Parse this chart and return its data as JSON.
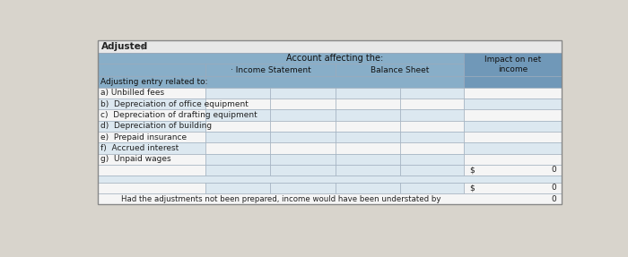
{
  "title_cell": "Adjusted",
  "header1": "Account affecting the:",
  "header2_col1": "· Income Statement",
  "header2_col2": "Balance Sheet",
  "header3": "Impact on net\nincome",
  "row_label_header": "Adjusting entry related to:",
  "rows": [
    "a) Unbilled fees",
    "b)  Depreciation of office equipment",
    "c)  Depreciation of drafting equipment",
    "d)  Depreciation of building",
    "e)  Prepaid insurance",
    "f)  Accrued interest",
    "g)  Unpaid wages"
  ],
  "footer_text": "Had the adjustments not been prepared, income would have been understated by",
  "dollar_val1": "0",
  "dollar_val2": "0",
  "dollar_val3": "0",
  "page_bg": "#d8d4cc",
  "title_bg": "#e8e8e8",
  "header_blue": "#88aec8",
  "header_blue_impact": "#7098b8",
  "cell_bg_white": "#f5f5f5",
  "cell_bg_blue": "#dce8f0",
  "border_color": "#9aaabb",
  "text_dark": "#222222"
}
